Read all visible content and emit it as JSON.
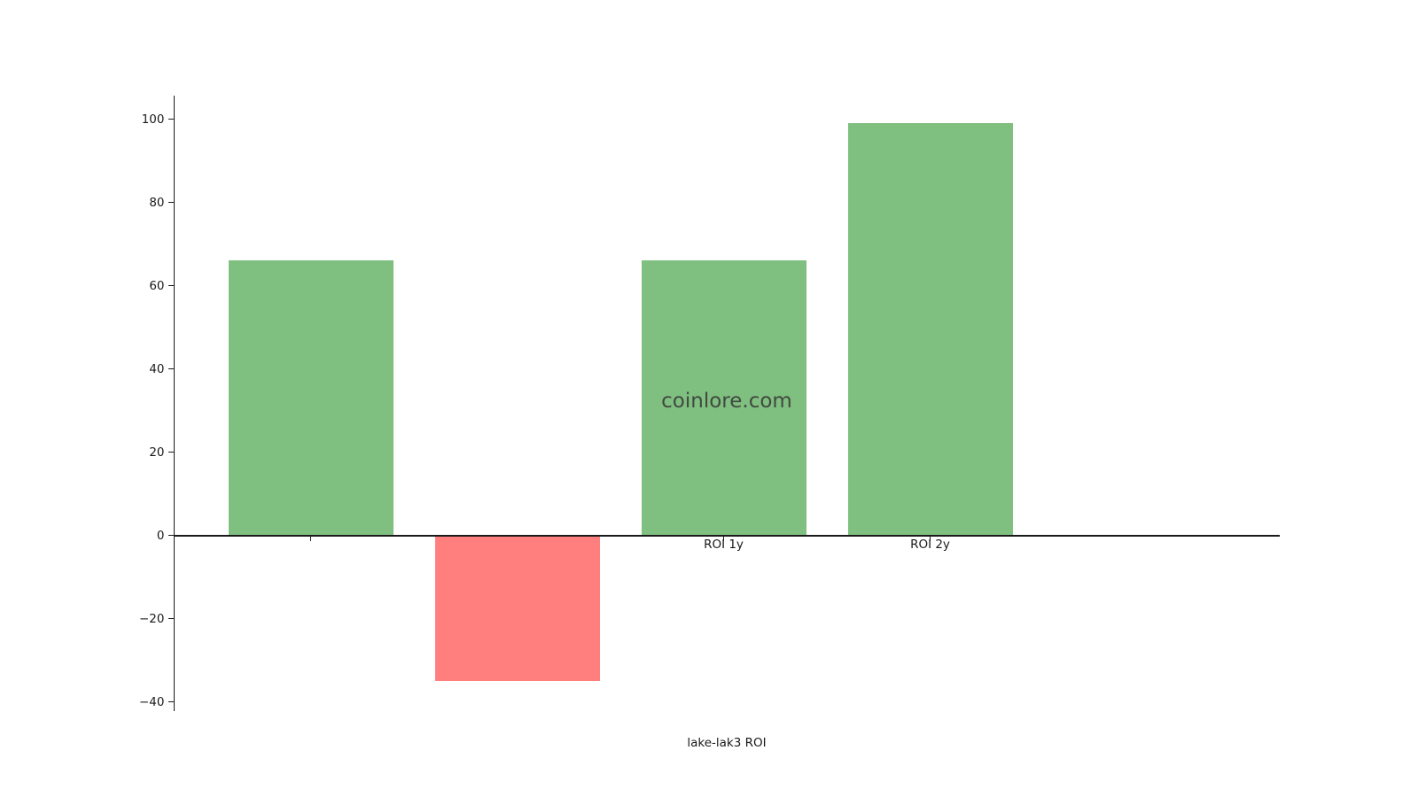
{
  "chart_data": {
    "type": "bar",
    "title": "lake-lak3 ROI",
    "watermark": "coinlore.com",
    "categories": [
      "",
      "",
      "ROI 1y",
      "ROI 2y"
    ],
    "values": [
      66,
      -35,
      66,
      99
    ],
    "yticks": [
      100,
      80,
      60,
      40,
      20,
      0,
      -20,
      -40
    ],
    "ylim": [
      -42,
      106
    ],
    "xlabel": "",
    "ylabel": "",
    "grid": false,
    "legend": "none",
    "colors": {
      "positive_bar": "#7fbf7f",
      "negative_bar": "#ff7f7f",
      "axis": "#1a1a1a",
      "watermark_text": "#3c3c3c",
      "background": "#ffffff"
    }
  }
}
